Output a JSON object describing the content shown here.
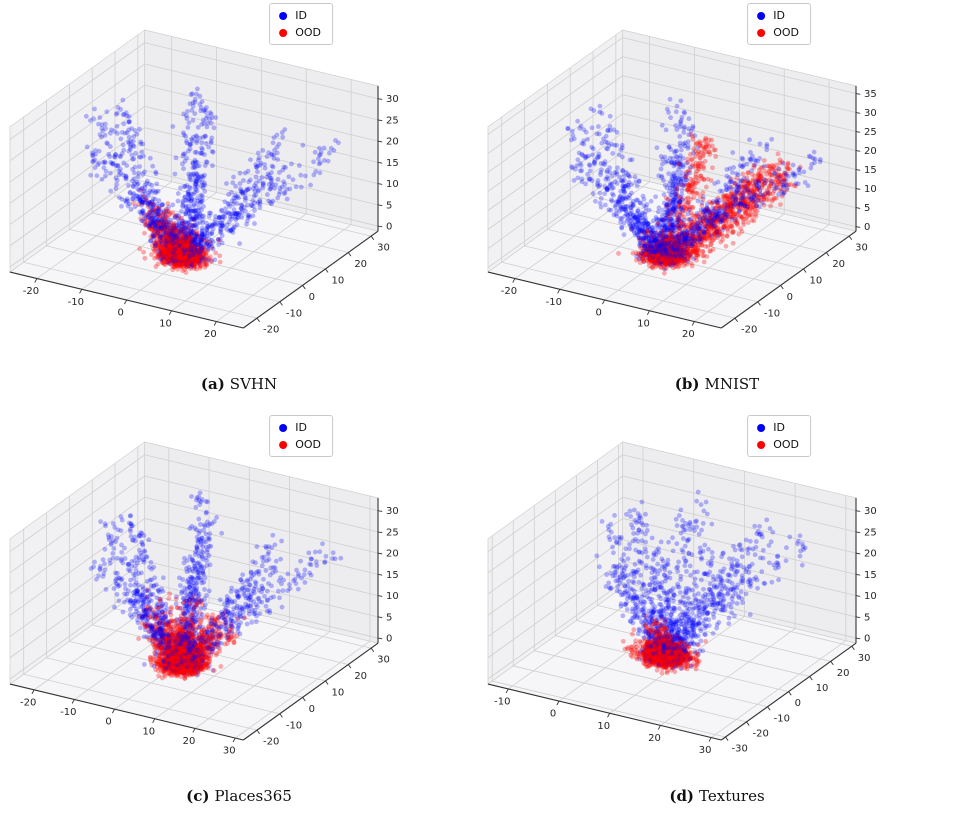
{
  "figure": {
    "background": "#ffffff",
    "pane_colors": [
      "#f1f1f4",
      "#ededf0",
      "#f6f6f8"
    ],
    "grid_color": "#cfcfcf",
    "axis_color": "#333333",
    "tick_color": "#262626",
    "marker_colors": {
      "ID": "#0000ff",
      "OOD": "#ff0000"
    }
  },
  "chart_data": [
    {
      "type": "scatter3d",
      "caption_index": "(a)",
      "caption_label": "SVHN",
      "legend": [
        {
          "label": "ID",
          "color": "#0000ff"
        },
        {
          "label": "OOD",
          "color": "#ff0000"
        }
      ],
      "view": {
        "elev": 30,
        "azim": -60
      },
      "axes": {
        "x": {
          "ticks": [
            -20,
            -10,
            0,
            10,
            20
          ],
          "range": [
            -26,
            26
          ]
        },
        "y": {
          "ticks": [
            -20,
            -10,
            0,
            10,
            20,
            30
          ],
          "range": [
            -26,
            33
          ]
        },
        "z": {
          "ticks": [
            0,
            5,
            10,
            15,
            20,
            25,
            30
          ],
          "range": [
            -1.2,
            33
          ]
        }
      },
      "origin": [
        2,
        -5,
        0.5
      ],
      "series": [
        {
          "name": "ID",
          "color": "#0000ff",
          "alpha": 0.28,
          "cluster": {
            "n": 150,
            "spread": 2.0
          },
          "rays": [
            {
              "dir": [
                -0.62,
                0.45,
                0.64
              ],
              "len": 38,
              "n": 130,
              "spread": 1.3
            },
            {
              "dir": [
                -0.6,
                0.05,
                0.8
              ],
              "len": 36,
              "n": 130,
              "spread": 1.3
            },
            {
              "dir": [
                -0.38,
                -0.42,
                0.82
              ],
              "len": 34,
              "n": 120,
              "spread": 1.3
            },
            {
              "dir": [
                -0.28,
                0.7,
                0.66
              ],
              "len": 40,
              "n": 130,
              "spread": 1.4
            },
            {
              "dir": [
                -0.05,
                -0.6,
                0.8
              ],
              "len": 30,
              "n": 110,
              "spread": 1.2
            },
            {
              "dir": [
                0.02,
                0.3,
                0.95
              ],
              "len": 34,
              "n": 120,
              "spread": 1.2
            },
            {
              "dir": [
                0.28,
                -0.35,
                0.89
              ],
              "len": 32,
              "n": 120,
              "spread": 1.2
            },
            {
              "dir": [
                0.45,
                0.35,
                0.82
              ],
              "len": 36,
              "n": 130,
              "spread": 1.3
            },
            {
              "dir": [
                0.62,
                -0.05,
                0.78
              ],
              "len": 36,
              "n": 130,
              "spread": 1.3
            },
            {
              "dir": [
                0.55,
                0.6,
                0.58
              ],
              "len": 40,
              "n": 130,
              "spread": 1.4
            }
          ]
        },
        {
          "name": "OOD",
          "color": "#ff0000",
          "alpha": 0.32,
          "cluster": {
            "n": 600,
            "spread": 2.4
          },
          "rays": [
            {
              "dir": [
                -0.6,
                0.05,
                0.8
              ],
              "len": 13,
              "n": 160,
              "spread": 1.6
            },
            {
              "dir": [
                -0.38,
                -0.42,
                0.82
              ],
              "len": 12,
              "n": 140,
              "spread": 1.6
            },
            {
              "dir": [
                -0.62,
                0.45,
                0.64
              ],
              "len": 10,
              "n": 100,
              "spread": 1.5
            },
            {
              "dir": [
                -0.05,
                -0.6,
                0.8
              ],
              "len": 9,
              "n": 90,
              "spread": 1.4
            },
            {
              "dir": [
                0.28,
                -0.35,
                0.89
              ],
              "len": 7,
              "n": 70,
              "spread": 1.4
            },
            {
              "dir": [
                0.02,
                0.3,
                0.95
              ],
              "len": 8,
              "n": 70,
              "spread": 1.4
            }
          ]
        }
      ]
    },
    {
      "type": "scatter3d",
      "caption_index": "(b)",
      "caption_label": "MNIST",
      "legend": [
        {
          "label": "ID",
          "color": "#0000ff"
        },
        {
          "label": "OOD",
          "color": "#ff0000"
        }
      ],
      "view": {
        "elev": 30,
        "azim": -60
      },
      "axes": {
        "x": {
          "ticks": [
            -20,
            -10,
            0,
            10,
            20
          ],
          "range": [
            -26,
            26
          ]
        },
        "y": {
          "ticks": [
            -20,
            -10,
            0,
            10,
            20,
            30
          ],
          "range": [
            -26,
            33
          ]
        },
        "z": {
          "ticks": [
            0,
            5,
            10,
            15,
            20,
            25,
            30,
            35
          ],
          "range": [
            -1.2,
            37
          ]
        }
      },
      "origin": [
        2,
        -4,
        0.5
      ],
      "series": [
        {
          "name": "ID",
          "color": "#0000ff",
          "alpha": 0.28,
          "cluster": {
            "n": 120,
            "spread": 2.0
          },
          "rays": [
            {
              "dir": [
                -0.62,
                0.45,
                0.64
              ],
              "len": 38,
              "n": 130,
              "spread": 1.3
            },
            {
              "dir": [
                -0.6,
                0.05,
                0.8
              ],
              "len": 36,
              "n": 130,
              "spread": 1.3
            },
            {
              "dir": [
                -0.38,
                -0.42,
                0.82
              ],
              "len": 34,
              "n": 120,
              "spread": 1.3
            },
            {
              "dir": [
                -0.28,
                0.7,
                0.66
              ],
              "len": 40,
              "n": 130,
              "spread": 1.4
            },
            {
              "dir": [
                -0.05,
                -0.6,
                0.8
              ],
              "len": 30,
              "n": 110,
              "spread": 1.2
            },
            {
              "dir": [
                0.02,
                0.3,
                0.95
              ],
              "len": 34,
              "n": 120,
              "spread": 1.2
            },
            {
              "dir": [
                0.28,
                -0.35,
                0.89
              ],
              "len": 32,
              "n": 120,
              "spread": 1.2
            },
            {
              "dir": [
                0.45,
                0.35,
                0.82
              ],
              "len": 36,
              "n": 130,
              "spread": 1.3
            },
            {
              "dir": [
                0.62,
                -0.05,
                0.78
              ],
              "len": 36,
              "n": 130,
              "spread": 1.3
            },
            {
              "dir": [
                0.55,
                0.6,
                0.58
              ],
              "len": 40,
              "n": 130,
              "spread": 1.4
            }
          ]
        },
        {
          "name": "OOD",
          "color": "#ff0000",
          "alpha": 0.32,
          "cluster": {
            "n": 500,
            "spread": 2.2
          },
          "rays": [
            {
              "dir": [
                0.32,
                0.85,
                0.38
              ],
              "len": 34,
              "n": 900,
              "spread": 2.2
            },
            {
              "dir": [
                0.08,
                0.45,
                0.89
              ],
              "len": 30,
              "n": 260,
              "spread": 1.4
            },
            {
              "dir": [
                -0.6,
                0.05,
                0.8
              ],
              "len": 8,
              "n": 60,
              "spread": 1.4
            }
          ]
        }
      ]
    },
    {
      "type": "scatter3d",
      "caption_index": "(c)",
      "caption_label": "Places365",
      "legend": [
        {
          "label": "ID",
          "color": "#0000ff"
        },
        {
          "label": "OOD",
          "color": "#ff0000"
        }
      ],
      "view": {
        "elev": 30,
        "azim": -60
      },
      "axes": {
        "x": {
          "ticks": [
            -20,
            -10,
            0,
            10,
            20,
            30
          ],
          "range": [
            -26,
            32
          ]
        },
        "y": {
          "ticks": [
            -20,
            -10,
            0,
            10,
            20,
            30
          ],
          "range": [
            -26,
            33
          ]
        },
        "z": {
          "ticks": [
            0,
            5,
            10,
            15,
            20,
            25,
            30
          ],
          "range": [
            -1.2,
            33
          ]
        }
      },
      "origin": [
        4,
        -3,
        0.5
      ],
      "series": [
        {
          "name": "ID",
          "color": "#0000ff",
          "alpha": 0.28,
          "cluster": {
            "n": 150,
            "spread": 2.0
          },
          "rays": [
            {
              "dir": [
                -0.62,
                0.45,
                0.64
              ],
              "len": 38,
              "n": 130,
              "spread": 1.3
            },
            {
              "dir": [
                -0.6,
                0.05,
                0.8
              ],
              "len": 36,
              "n": 130,
              "spread": 1.3
            },
            {
              "dir": [
                -0.38,
                -0.42,
                0.82
              ],
              "len": 34,
              "n": 120,
              "spread": 1.3
            },
            {
              "dir": [
                -0.28,
                0.7,
                0.66
              ],
              "len": 40,
              "n": 130,
              "spread": 1.4
            },
            {
              "dir": [
                -0.05,
                -0.6,
                0.8
              ],
              "len": 30,
              "n": 110,
              "spread": 1.2
            },
            {
              "dir": [
                0.02,
                0.3,
                0.95
              ],
              "len": 34,
              "n": 120,
              "spread": 1.2
            },
            {
              "dir": [
                0.28,
                -0.35,
                0.89
              ],
              "len": 32,
              "n": 120,
              "spread": 1.2
            },
            {
              "dir": [
                0.45,
                0.35,
                0.82
              ],
              "len": 36,
              "n": 130,
              "spread": 1.3
            },
            {
              "dir": [
                0.62,
                -0.05,
                0.78
              ],
              "len": 36,
              "n": 130,
              "spread": 1.3
            },
            {
              "dir": [
                0.55,
                0.6,
                0.58
              ],
              "len": 40,
              "n": 130,
              "spread": 1.4
            }
          ]
        },
        {
          "name": "OOD",
          "color": "#ff0000",
          "alpha": 0.32,
          "cluster": {
            "n": 700,
            "spread": 2.6
          },
          "rays": [
            {
              "dir": [
                -0.62,
                0.45,
                0.64
              ],
              "len": 15,
              "n": 110,
              "spread": 1.7
            },
            {
              "dir": [
                -0.6,
                0.05,
                0.8
              ],
              "len": 16,
              "n": 120,
              "spread": 1.7
            },
            {
              "dir": [
                -0.38,
                -0.42,
                0.82
              ],
              "len": 14,
              "n": 110,
              "spread": 1.7
            },
            {
              "dir": [
                -0.28,
                0.7,
                0.66
              ],
              "len": 16,
              "n": 110,
              "spread": 1.7
            },
            {
              "dir": [
                -0.05,
                -0.6,
                0.8
              ],
              "len": 12,
              "n": 90,
              "spread": 1.5
            },
            {
              "dir": [
                0.02,
                0.3,
                0.95
              ],
              "len": 14,
              "n": 100,
              "spread": 1.5
            },
            {
              "dir": [
                0.28,
                -0.35,
                0.89
              ],
              "len": 13,
              "n": 100,
              "spread": 1.5
            },
            {
              "dir": [
                0.45,
                0.35,
                0.82
              ],
              "len": 14,
              "n": 100,
              "spread": 1.5
            },
            {
              "dir": [
                0.62,
                -0.05,
                0.78
              ],
              "len": 13,
              "n": 90,
              "spread": 1.5
            },
            {
              "dir": [
                0.55,
                0.6,
                0.58
              ],
              "len": 14,
              "n": 90,
              "spread": 1.5
            }
          ]
        }
      ]
    },
    {
      "type": "scatter3d",
      "caption_index": "(d)",
      "caption_label": "Textures",
      "legend": [
        {
          "label": "ID",
          "color": "#0000ff"
        },
        {
          "label": "OOD",
          "color": "#ff0000"
        }
      ],
      "view": {
        "elev": 30,
        "azim": -60
      },
      "axes": {
        "x": {
          "ticks": [
            -10,
            0,
            10,
            20,
            30
          ],
          "range": [
            -14,
            32
          ]
        },
        "y": {
          "ticks": [
            -30,
            -20,
            -10,
            0,
            10,
            20,
            30
          ],
          "range": [
            -32,
            32
          ]
        },
        "z": {
          "ticks": [
            0,
            5,
            10,
            15,
            20,
            25,
            30
          ],
          "range": [
            -1.2,
            33
          ]
        }
      },
      "origin": [
        9,
        -3,
        0.5
      ],
      "series": [
        {
          "name": "ID",
          "color": "#0000ff",
          "alpha": 0.28,
          "cluster": {
            "n": 130,
            "spread": 2.0
          },
          "rays": [
            {
              "dir": [
                -0.35,
                0.4,
                0.85
              ],
              "len": 34,
              "n": 130,
              "spread": 1.3
            },
            {
              "dir": [
                -0.32,
                -0.05,
                0.95
              ],
              "len": 32,
              "n": 120,
              "spread": 1.2
            },
            {
              "dir": [
                -0.15,
                -0.5,
                0.85
              ],
              "len": 32,
              "n": 120,
              "spread": 1.3
            },
            {
              "dir": [
                -0.05,
                0.55,
                0.83
              ],
              "len": 36,
              "n": 130,
              "spread": 1.3
            },
            {
              "dir": [
                0.12,
                -0.3,
                0.95
              ],
              "len": 32,
              "n": 120,
              "spread": 1.2
            },
            {
              "dir": [
                0.35,
                0.45,
                0.82
              ],
              "len": 36,
              "n": 130,
              "spread": 1.3
            },
            {
              "dir": [
                0.5,
                -0.15,
                0.85
              ],
              "len": 34,
              "n": 120,
              "spread": 1.3
            },
            {
              "dir": [
                0.55,
                0.35,
                0.76
              ],
              "len": 38,
              "n": 130,
              "spread": 1.3
            },
            {
              "dir": [
                0.28,
                0.08,
                0.95
              ],
              "len": 30,
              "n": 110,
              "spread": 1.2
            }
          ]
        },
        {
          "name": "OOD",
          "color": "#ff0000",
          "alpha": 0.32,
          "cluster": {
            "n": 800,
            "spread": 2.4
          },
          "rays": [
            {
              "dir": [
                -0.32,
                -0.05,
                0.95
              ],
              "len": 9,
              "n": 80,
              "spread": 1.5
            },
            {
              "dir": [
                -0.15,
                -0.5,
                0.85
              ],
              "len": 8,
              "n": 70,
              "spread": 1.5
            },
            {
              "dir": [
                0.12,
                -0.3,
                0.95
              ],
              "len": 8,
              "n": 70,
              "spread": 1.4
            },
            {
              "dir": [
                0.5,
                -0.15,
                0.85
              ],
              "len": 7,
              "n": 60,
              "spread": 1.4
            },
            {
              "dir": [
                -0.35,
                0.4,
                0.85
              ],
              "len": 7,
              "n": 60,
              "spread": 1.4
            }
          ]
        }
      ]
    }
  ]
}
